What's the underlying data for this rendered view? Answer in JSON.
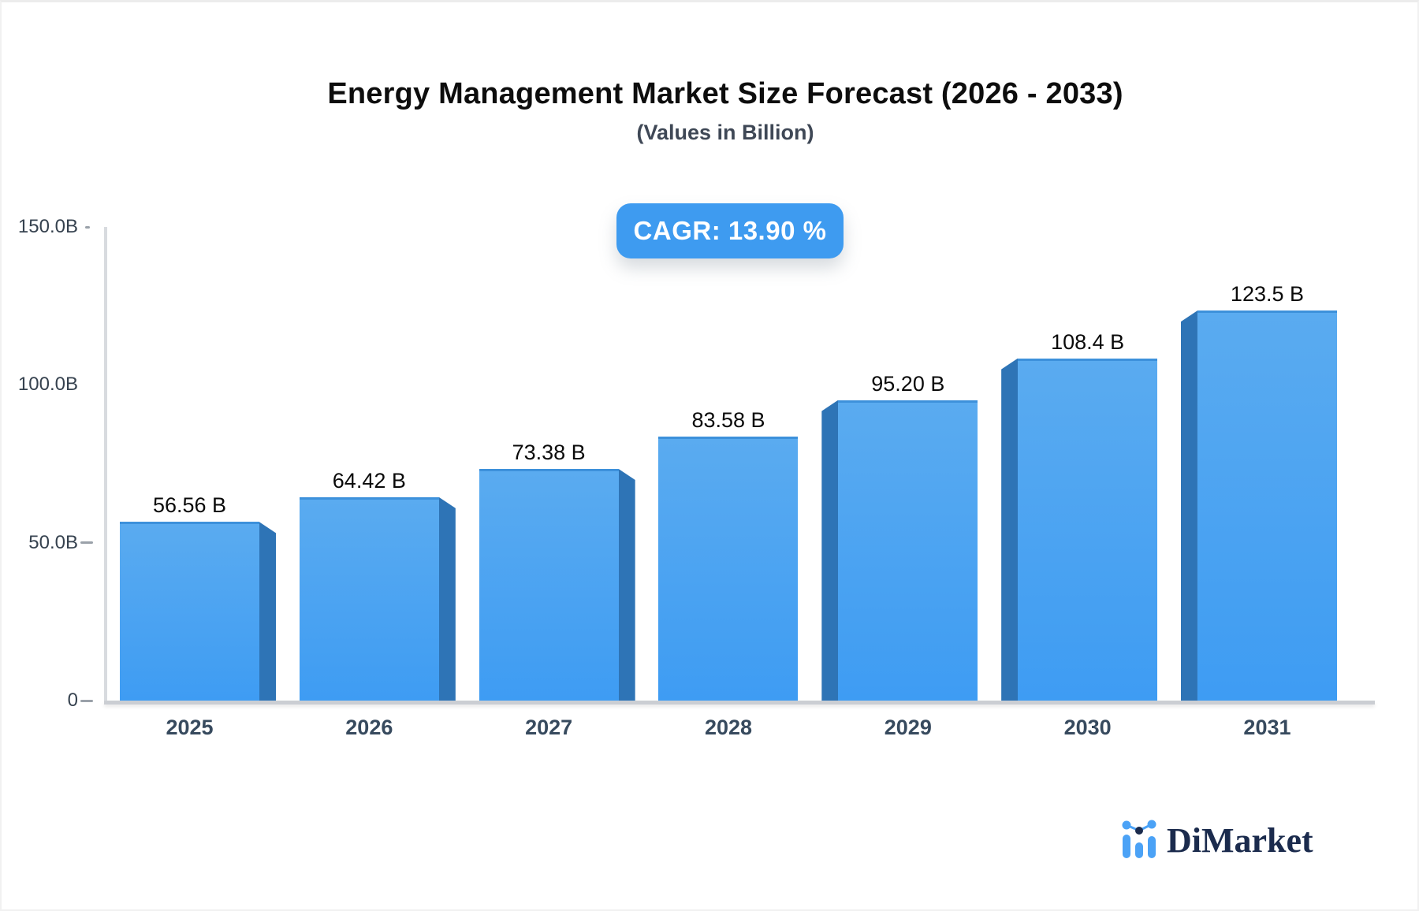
{
  "header": {
    "title": "Energy Management Market Size Forecast (2026 - 2033)",
    "subtitle": "(Values in Billion)",
    "cagr_badge": "CAGR: 13.90 %"
  },
  "chart_data": {
    "type": "bar",
    "title": "Energy Management Market Size Forecast (2026 - 2033)",
    "subtitle": "(Values in Billion)",
    "cagr_percent": 13.9,
    "categories": [
      "2025",
      "2026",
      "2027",
      "2028",
      "2029",
      "2030",
      "2031"
    ],
    "values": [
      56.56,
      64.42,
      73.38,
      83.58,
      95.2,
      108.4,
      123.5
    ],
    "value_labels": [
      "56.56 B",
      "64.42 B",
      "73.38 B",
      "83.58 B",
      "95.20 B",
      "108.4 B",
      "123.5 B"
    ],
    "xlabel": "",
    "ylabel": "",
    "ylim": [
      0,
      150
    ],
    "y_ticks": [
      {
        "label": "150.0B",
        "value": 150
      },
      {
        "label": "100.0B",
        "value": 100
      },
      {
        "label": "50.0B",
        "value": 50
      },
      {
        "label": "0",
        "value": 0
      }
    ],
    "grid": false,
    "legend": "none",
    "bar_style": "3d-perspective"
  },
  "footer": {
    "brand": "DiMarket",
    "brand_icon": "bar-chart-logo-icon"
  },
  "colors": {
    "bar_face_top": "#5aabf0",
    "bar_face_bottom": "#3e9cf3",
    "bar_side": "#2e74b6",
    "badge_blue": "#3e9bf0",
    "axis_gray": "#d8dbdf",
    "baseline_gray": "#cbced3",
    "title_text": "#0d0d0d",
    "tick_text": "#36424f",
    "logo_navy": "#1b2b4d",
    "logo_blue": "#4ba2f6"
  }
}
